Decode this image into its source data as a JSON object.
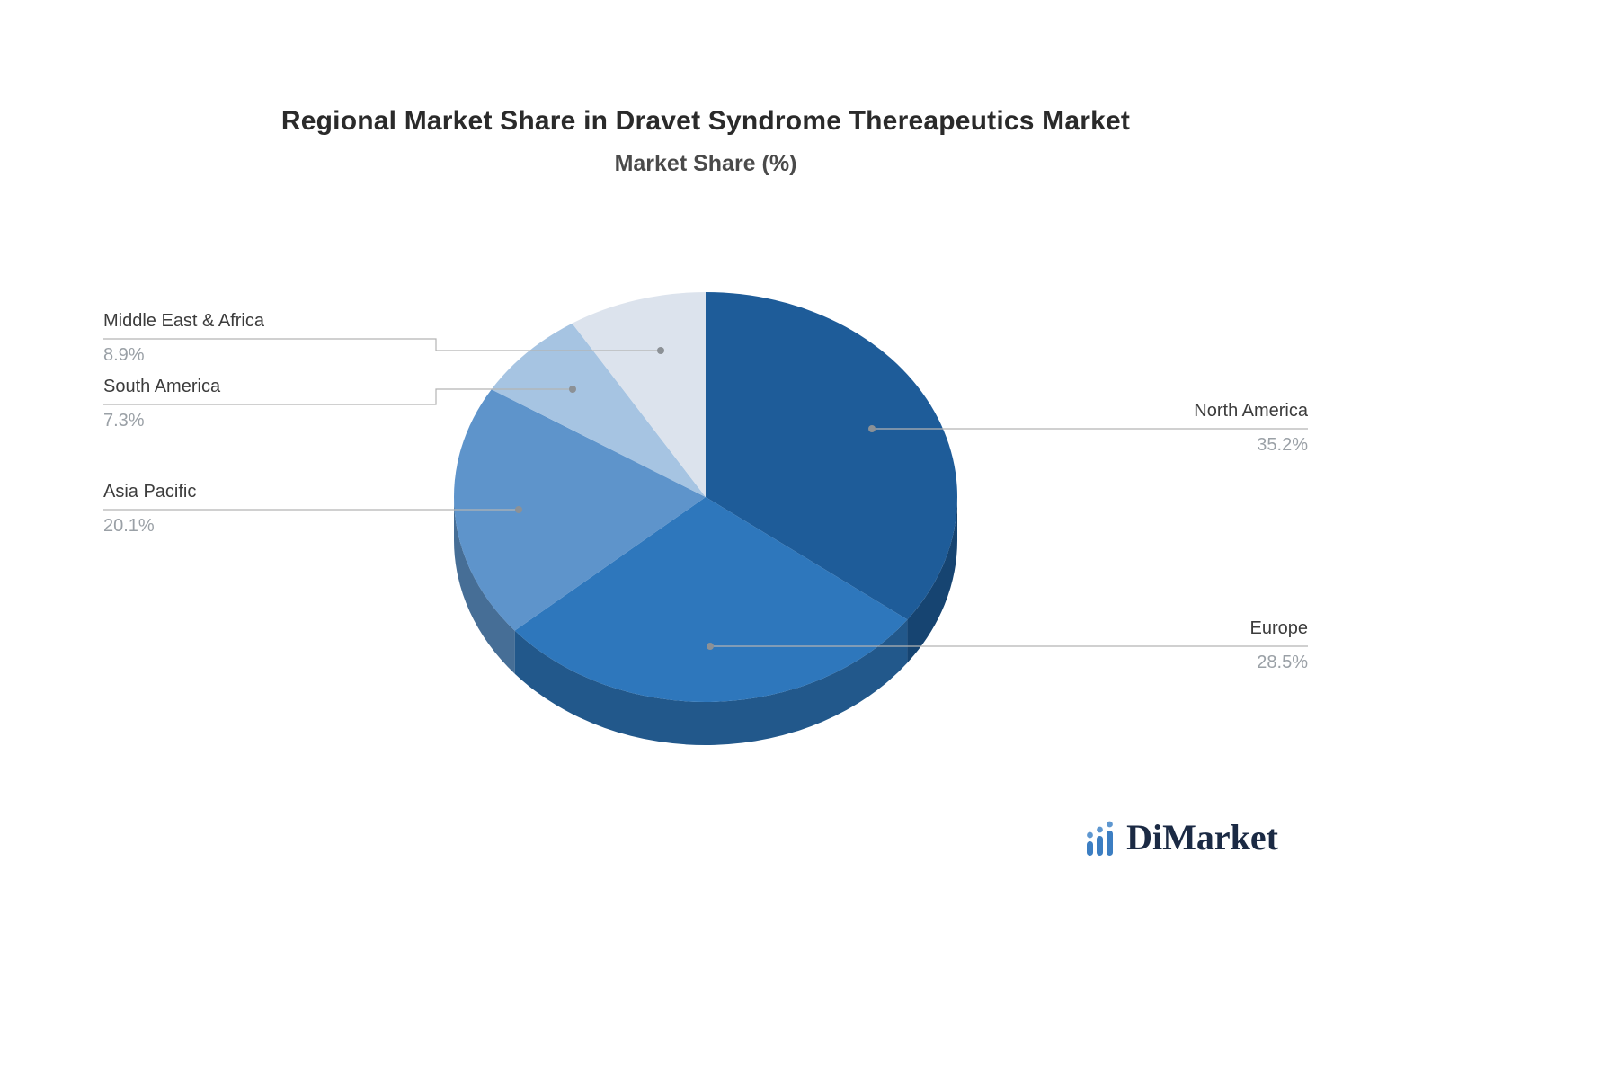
{
  "chart_data": {
    "type": "pie",
    "style": "3d",
    "title": "Regional Market Share in Dravet Syndrome Thereapeutics Market",
    "subtitle": "Market Share (%)",
    "unit": "%",
    "total": 100,
    "start_angle": "top",
    "direction": "clockwise",
    "legend": "none",
    "label_style": "callout-leader-lines",
    "slices": [
      {
        "label": "North America",
        "value": 35.2,
        "display": "35.2%",
        "color": "#1E5C99",
        "label_side": "right"
      },
      {
        "label": "Europe",
        "value": 28.5,
        "display": "28.5%",
        "color": "#2E77BC",
        "label_side": "right"
      },
      {
        "label": "Asia Pacific",
        "value": 20.1,
        "display": "20.1%",
        "color": "#5E94CB",
        "label_side": "left"
      },
      {
        "label": "South America",
        "value": 7.3,
        "display": "7.3%",
        "color": "#A6C4E2",
        "label_side": "left"
      },
      {
        "label": "Middle East & Africa",
        "value": 8.9,
        "display": "8.9%",
        "color": "#DCE3ED",
        "label_side": "left"
      }
    ]
  },
  "brand": {
    "name": "DiMarket",
    "icon": "bar-chart-icon",
    "icon_color": "#3C7EC2",
    "icon_dot_color": "#5E97D0",
    "text_color": "#1B2A44"
  },
  "colors": {
    "background": "#FFFFFF",
    "title": "#2A2A2A",
    "subtitle": "#4A4A4A",
    "label": "#3C3C3C",
    "value": "#9AA0A6",
    "leader_line": "#B3B3B3",
    "leader_dot": "#8C9196"
  }
}
